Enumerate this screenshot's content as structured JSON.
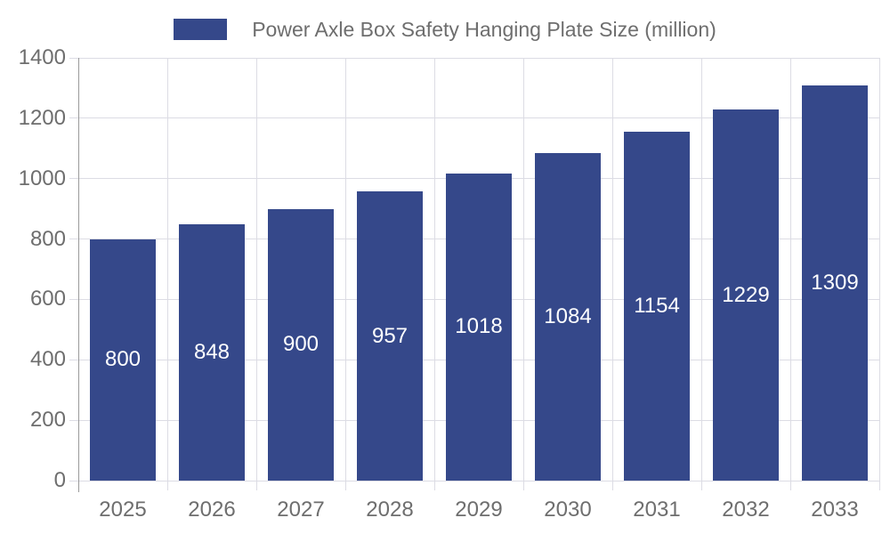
{
  "chart_data": {
    "type": "bar",
    "title": "Power Axle Box Safety Hanging Plate Size (million)",
    "legend_position": "top",
    "categories": [
      "2025",
      "2026",
      "2027",
      "2028",
      "2029",
      "2030",
      "2031",
      "2032",
      "2033"
    ],
    "values": [
      800,
      848,
      900,
      957,
      1018,
      1084,
      1154,
      1229,
      1309
    ],
    "xlabel": "",
    "ylabel": "",
    "ylim": [
      0,
      1400
    ],
    "yticks": [
      0,
      200,
      400,
      600,
      800,
      1000,
      1200,
      1400
    ],
    "grid": true,
    "bar_label_position": "inside-center",
    "colors": {
      "bar": "#35488a",
      "grid": "#dcdce4",
      "axis_line": "#9a9a9a",
      "tick_text": "#6e6e6e",
      "bar_label": "#ffffff",
      "legend_text": "#6e6e6e",
      "background": "#ffffff"
    }
  }
}
